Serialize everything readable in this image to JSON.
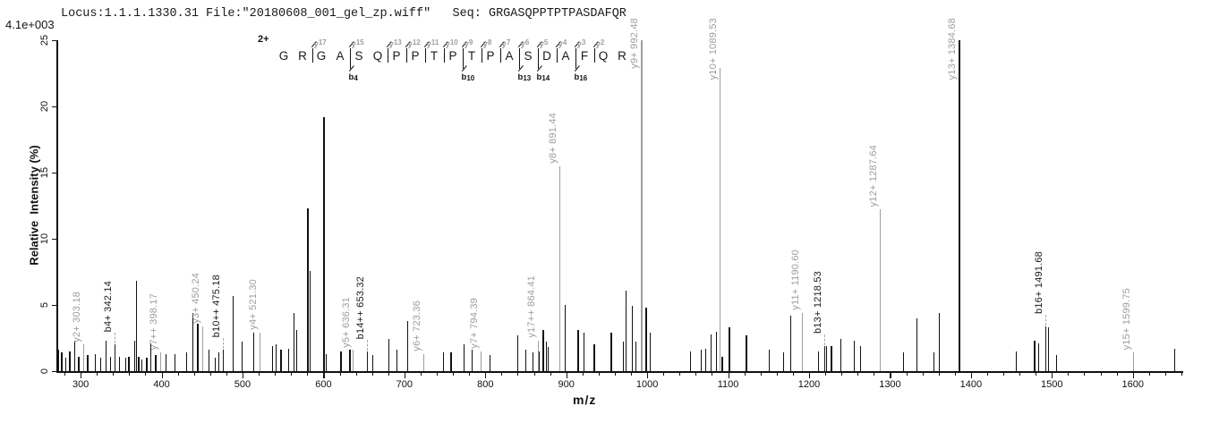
{
  "header": {
    "title": "Locus:1.1.1.1330.31 File:\"20180608_001_gel_zp.wiff\"   Seq: GRGASQPPTPTPASDAFQR"
  },
  "chart_data": {
    "type": "bar",
    "subtype": "ms2-fragmentation-spectrum",
    "title": "Locus:1.1.1.1330.31 File:\"20180608_001_gel_zp.wiff\"   Seq: GRGASQPPTPTPASDAFQR",
    "xlabel": "m/z",
    "ylabel": "Relative  Intensity (%)",
    "intensity_scale_label": "4.1e+003",
    "xlim": [
      270,
      1660
    ],
    "ylim": [
      0,
      25
    ],
    "x_major_ticks": [
      300,
      400,
      500,
      600,
      700,
      800,
      900,
      1000,
      1100,
      1200,
      1300,
      1400,
      1500,
      1600
    ],
    "x_minor_tick_step": 20,
    "y_ticks": [
      0,
      5,
      10,
      15,
      20,
      25
    ],
    "grid": false,
    "legend": false,
    "precursor_charge": "2+",
    "sequence": "GRGASQPPTPTPASDAFQR",
    "residues": [
      {
        "aa": "G"
      },
      {
        "aa": "R"
      },
      {
        "aa": "G",
        "y": "y17"
      },
      {
        "aa": "A"
      },
      {
        "aa": "S",
        "y": "y15",
        "b": "b4"
      },
      {
        "aa": "Q"
      },
      {
        "aa": "P",
        "y": "y13"
      },
      {
        "aa": "P",
        "y": "y12"
      },
      {
        "aa": "T",
        "y": "y11"
      },
      {
        "aa": "P",
        "y": "y10"
      },
      {
        "aa": "T",
        "y": "y9",
        "b": "b10"
      },
      {
        "aa": "P",
        "y": "y8"
      },
      {
        "aa": "A",
        "y": "y7"
      },
      {
        "aa": "S",
        "y": "y6",
        "b": "b13"
      },
      {
        "aa": "D",
        "y": "y5",
        "b": "b14"
      },
      {
        "aa": "A",
        "y": "y4"
      },
      {
        "aa": "F",
        "y": "y3",
        "b": "b16"
      },
      {
        "aa": "Q",
        "y": "y2"
      },
      {
        "aa": "R"
      }
    ],
    "labeled_peaks": [
      {
        "mz": 303.18,
        "intensity": 2.0,
        "label": "y2+ 303.18",
        "ion": "y"
      },
      {
        "mz": 342.14,
        "intensity": 2.0,
        "label": "b4+ 342.14",
        "ion": "b"
      },
      {
        "mz": 398.17,
        "intensity": 1.4,
        "label": "y7++ 398.17",
        "ion": "y"
      },
      {
        "mz": 450.24,
        "intensity": 3.4,
        "label": "y3+ 450.24",
        "ion": "y"
      },
      {
        "mz": 475.18,
        "intensity": 1.6,
        "label": "b10++ 475.18",
        "ion": "b"
      },
      {
        "mz": 521.3,
        "intensity": 2.9,
        "label": "y4+ 521.30",
        "ion": "y"
      },
      {
        "mz": 636.31,
        "intensity": 1.6,
        "label": "y5+ 636.31",
        "ion": "y"
      },
      {
        "mz": 653.32,
        "intensity": 1.5,
        "label": "b14++ 653.32",
        "ion": "b"
      },
      {
        "mz": 723.36,
        "intensity": 1.3,
        "label": "y6+ 723.36",
        "ion": "y"
      },
      {
        "mz": 794.39,
        "intensity": 1.5,
        "label": "y7+ 794.39",
        "ion": "y"
      },
      {
        "mz": 864.41,
        "intensity": 2.3,
        "label": "y17++ 864.41",
        "ion": "y"
      },
      {
        "mz": 891.44,
        "intensity": 15.5,
        "label": "y8+ 891.44",
        "ion": "y"
      },
      {
        "mz": 992.48,
        "intensity": 25,
        "label": "y9+ 992.48",
        "ion": "y"
      },
      {
        "mz": 1089.53,
        "intensity": 22.9,
        "label": "y10+ 1089.53",
        "ion": "y"
      },
      {
        "mz": 1190.6,
        "intensity": 4.4,
        "label": "y11+ 1190.60",
        "ion": "y"
      },
      {
        "mz": 1218.53,
        "intensity": 1.9,
        "label": "b13+ 1218.53",
        "ion": "b"
      },
      {
        "mz": 1287.64,
        "intensity": 12.2,
        "label": "y12+ 1287.64",
        "ion": "y"
      },
      {
        "mz": 1384.68,
        "intensity": 25,
        "label": "y13+ 1384.68",
        "ion": "y",
        "dark": true,
        "width": 2
      },
      {
        "mz": 1491.68,
        "intensity": 3.4,
        "label": "b16+ 1491.68",
        "ion": "b"
      },
      {
        "mz": 1599.75,
        "intensity": 1.4,
        "label": "y15+ 1599.75",
        "ion": "y"
      }
    ],
    "noise_peaks": [
      [
        272,
        1.6
      ],
      [
        276,
        1.4
      ],
      [
        281,
        1.0
      ],
      [
        286,
        1.5
      ],
      [
        292,
        2.3
      ],
      [
        297,
        1.1
      ],
      [
        308,
        1.2
      ],
      [
        317,
        1.3
      ],
      [
        324,
        1.0
      ],
      [
        331,
        2.3
      ],
      [
        336,
        1.1
      ],
      [
        347,
        1.1
      ],
      [
        355,
        1.0
      ],
      [
        359,
        1.1
      ],
      [
        366,
        2.3
      ],
      [
        368,
        6.8
      ],
      [
        371,
        1.1
      ],
      [
        375,
        0.9
      ],
      [
        381,
        1.0
      ],
      [
        386,
        2.1
      ],
      [
        392,
        1.2
      ],
      [
        405,
        1.3
      ],
      [
        416,
        1.3
      ],
      [
        430,
        1.4
      ],
      [
        438,
        4.4
      ],
      [
        444,
        3.6
      ],
      [
        458,
        1.6
      ],
      [
        466,
        1.0
      ],
      [
        470,
        1.4
      ],
      [
        488,
        5.7
      ],
      [
        499,
        2.2
      ],
      [
        513,
        2.9
      ],
      [
        536,
        1.9
      ],
      [
        541,
        2.0
      ],
      [
        547,
        1.6
      ],
      [
        556,
        1.7
      ],
      [
        563,
        4.4
      ],
      [
        566,
        3.1
      ],
      [
        580,
        12.3
      ],
      [
        583,
        7.6
      ],
      [
        600,
        19.2
      ],
      [
        603,
        1.3
      ],
      [
        621,
        1.5
      ],
      [
        632,
        1.6
      ],
      [
        660,
        1.2
      ],
      [
        680,
        2.4
      ],
      [
        690,
        1.6
      ],
      [
        703,
        3.8
      ],
      [
        748,
        1.4
      ],
      [
        757,
        1.4
      ],
      [
        773,
        2.0
      ],
      [
        783,
        1.6
      ],
      [
        805,
        1.2
      ],
      [
        839,
        2.7
      ],
      [
        849,
        1.6
      ],
      [
        858,
        1.4
      ],
      [
        866,
        1.5
      ],
      [
        871,
        3.1
      ],
      [
        875,
        2.2
      ],
      [
        877,
        1.8
      ],
      [
        898,
        5.0
      ],
      [
        914,
        3.1
      ],
      [
        921,
        2.9
      ],
      [
        934,
        2.0
      ],
      [
        955,
        2.9
      ],
      [
        970,
        2.2
      ],
      [
        973,
        6.1
      ],
      [
        981,
        4.9
      ],
      [
        985,
        2.2
      ],
      [
        998,
        4.8
      ],
      [
        1003,
        2.9
      ],
      [
        1053,
        1.5
      ],
      [
        1066,
        1.6
      ],
      [
        1072,
        1.7
      ],
      [
        1078,
        2.8
      ],
      [
        1085,
        3.0
      ],
      [
        1092,
        1.1
      ],
      [
        1101,
        3.3
      ],
      [
        1122,
        2.7
      ],
      [
        1150,
        1.6
      ],
      [
        1168,
        1.4
      ],
      [
        1177,
        4.2
      ],
      [
        1211,
        1.5
      ],
      [
        1221,
        1.9
      ],
      [
        1227,
        1.9
      ],
      [
        1239,
        2.4
      ],
      [
        1255,
        2.3
      ],
      [
        1263,
        1.9
      ],
      [
        1316,
        1.4
      ],
      [
        1333,
        4.0
      ],
      [
        1354,
        1.4
      ],
      [
        1360,
        4.4
      ],
      [
        1455,
        1.5
      ],
      [
        1478,
        2.3
      ],
      [
        1483,
        2.1
      ],
      [
        1495,
        3.3
      ],
      [
        1505,
        1.2
      ],
      [
        1651,
        1.7
      ]
    ],
    "colors": {
      "y_ion": "#9e9e9e",
      "b_ion": "#1a1a1a",
      "noise": "#111111"
    }
  }
}
